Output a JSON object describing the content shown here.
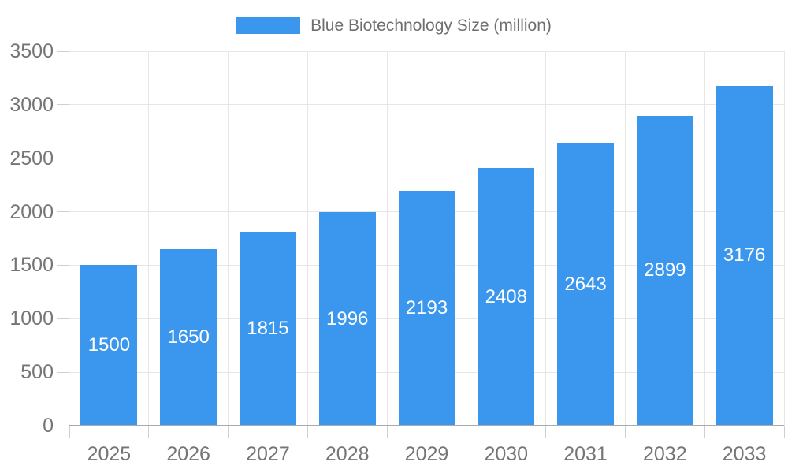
{
  "chart_data": {
    "type": "bar",
    "title": "",
    "legend": {
      "label": "Blue Biotechnology Size (million)",
      "position": "top"
    },
    "categories": [
      "2025",
      "2026",
      "2027",
      "2028",
      "2029",
      "2030",
      "2031",
      "2032",
      "2033"
    ],
    "series": [
      {
        "name": "Blue Biotechnology Size (million)",
        "values": [
          1500,
          1650,
          1815,
          1996,
          2193,
          2408,
          2643,
          2899,
          3176
        ]
      }
    ],
    "value_labels_on_bars": [
      1500,
      1650,
      1815,
      1996,
      2193,
      2408,
      2643,
      2899,
      3176
    ],
    "xlabel": "",
    "ylabel": "",
    "ylim": [
      0,
      3500
    ],
    "yticks": [
      0,
      500,
      1000,
      1500,
      2000,
      2500,
      3000,
      3500
    ],
    "grid": true,
    "legend_position": "top"
  },
  "colors": {
    "bar": "#3B97EE",
    "bar_value_text": "#FFFFFF",
    "grid": "#E6E6E6",
    "axis": "#ABABAB",
    "tick": "#CFCFCF",
    "axis_text": "#757575",
    "legend_text": "#6E6E6E",
    "background": "#FFFFFF"
  }
}
